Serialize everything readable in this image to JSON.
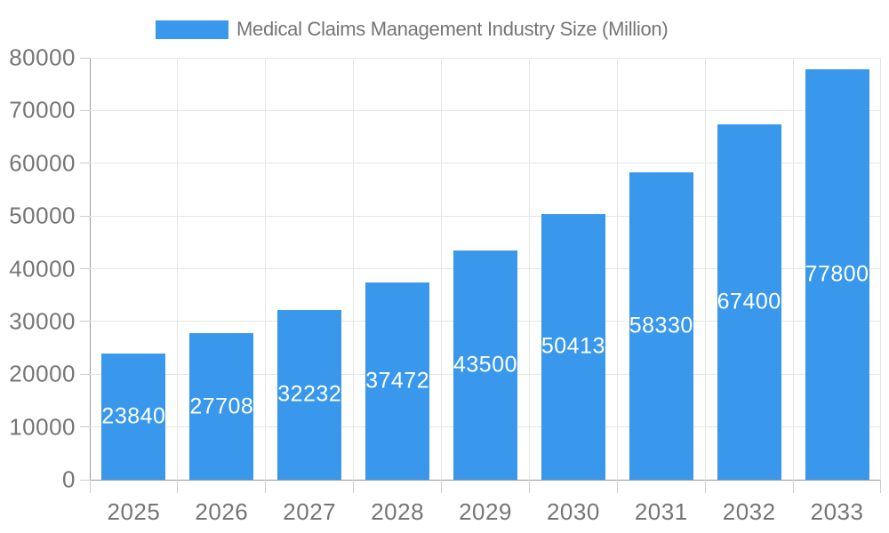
{
  "chart_data": {
    "type": "bar",
    "title": "Medical Claims Management Industry Size (Million)",
    "categories": [
      "2025",
      "2026",
      "2027",
      "2028",
      "2029",
      "2030",
      "2031",
      "2032",
      "2033"
    ],
    "values": [
      23840,
      27708,
      32232,
      37472,
      43500,
      50413,
      58330,
      67400,
      77800
    ],
    "xlabel": "",
    "ylabel": "",
    "ylim": [
      0,
      80000
    ],
    "ytick_step": 10000,
    "ytick_labels": [
      "0",
      "10000",
      "20000",
      "30000",
      "40000",
      "50000",
      "60000",
      "70000",
      "80000"
    ],
    "grid": "horizontal-and-vertical",
    "legend_position": "top",
    "value_labels": "inside-bar-centered",
    "colors": {
      "bar": "#3998EC",
      "tick_label": "#757575",
      "value_label": "#FFFFFF",
      "gridline": "#E6E6E6",
      "axis_line": "#999999",
      "tick_mark": "#CCCCCC",
      "background": "#FFFFFF"
    }
  }
}
